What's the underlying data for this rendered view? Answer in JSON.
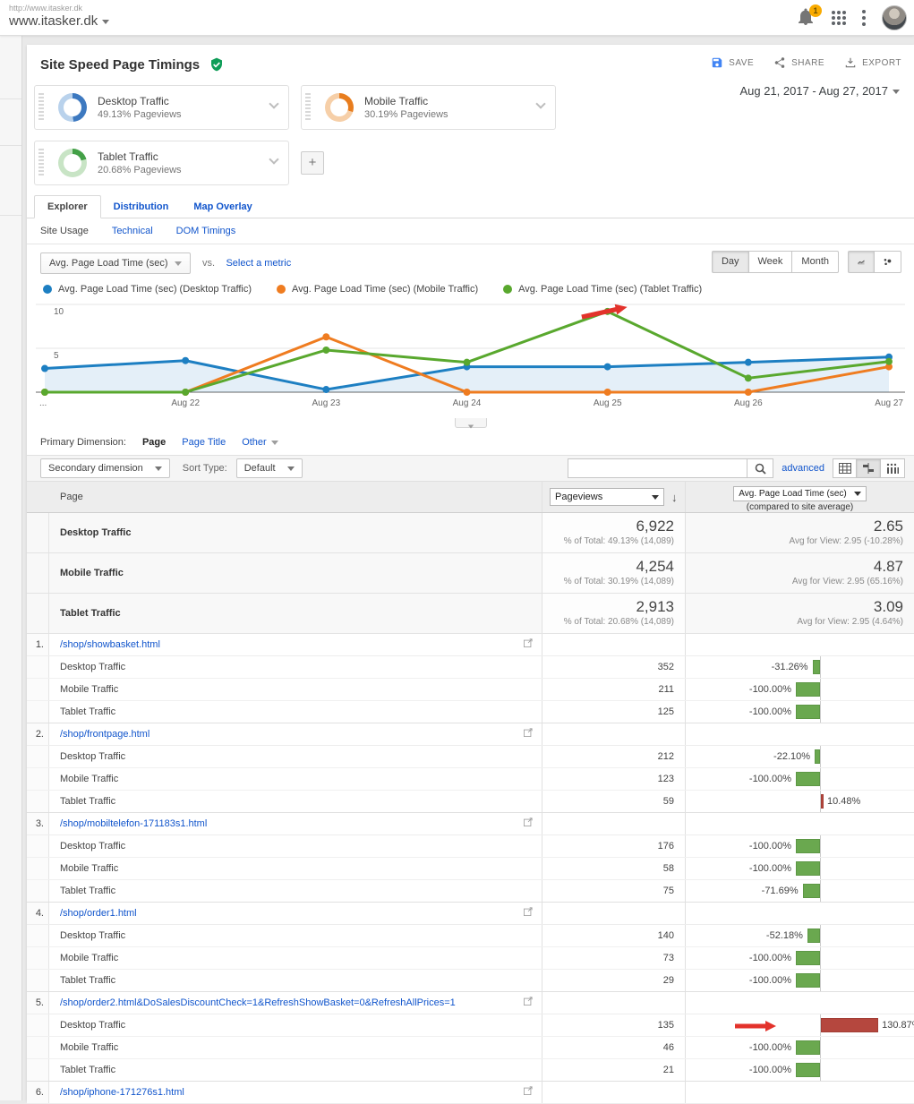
{
  "topbar": {
    "property_url": "http://www.itasker.dk",
    "property_name": "www.itasker.dk",
    "notification_count": "1"
  },
  "report": {
    "title": "Site Speed Page Timings",
    "save_label": "SAVE",
    "share_label": "SHARE",
    "export_label": "EXPORT",
    "date_range": "Aug 21, 2017 - Aug 27, 2017"
  },
  "segments": [
    {
      "name": "Desktop Traffic",
      "detail": "49.13% Pageviews",
      "pct": 49.13,
      "color": "#3d79c0",
      "track": "#b9d2ec"
    },
    {
      "name": "Mobile Traffic",
      "detail": "30.19% Pageviews",
      "pct": 30.19,
      "color": "#e87d1e",
      "track": "#f6cfa8"
    },
    {
      "name": "Tablet Traffic",
      "detail": "20.68% Pageviews",
      "pct": 20.68,
      "color": "#43a047",
      "track": "#c8e4c5"
    }
  ],
  "add_segment_label": "+",
  "tabs": [
    {
      "label": "Explorer",
      "active": true
    },
    {
      "label": "Distribution",
      "active": false
    },
    {
      "label": "Map Overlay",
      "active": false
    }
  ],
  "subtabs": [
    {
      "label": "Site Usage",
      "active": true
    },
    {
      "label": "Technical",
      "active": false
    },
    {
      "label": "DOM Timings",
      "active": false
    }
  ],
  "metric_bar": {
    "metric_dropdown": "Avg. Page Load Time (sec)",
    "vs_label": "vs.",
    "select_metric_link": "Select a metric",
    "granularity": [
      {
        "label": "Day",
        "active": true
      },
      {
        "label": "Week",
        "active": false
      },
      {
        "label": "Month",
        "active": false
      }
    ]
  },
  "chart_data": {
    "type": "line",
    "x_labels": [
      "...",
      "Aug 22",
      "Aug 23",
      "Aug 24",
      "Aug 25",
      "Aug 26",
      "Aug 27"
    ],
    "ylim": [
      0,
      10
    ],
    "yticks": [
      10,
      5
    ],
    "grid": true,
    "legend_position": "top",
    "series": [
      {
        "name": "Avg. Page Load Time (sec) (Desktop Traffic)",
        "color": "#1d7fc2",
        "area": true,
        "values": [
          2.7,
          3.6,
          0.3,
          2.9,
          2.9,
          3.4,
          4.0
        ]
      },
      {
        "name": "Avg. Page Load Time (sec) (Mobile Traffic)",
        "color": "#ef7c20",
        "area": false,
        "values": [
          0,
          0,
          6.3,
          0,
          0,
          0,
          2.9
        ]
      },
      {
        "name": "Avg. Page Load Time (sec) (Tablet Traffic)",
        "color": "#59a82e",
        "area": false,
        "values": [
          0,
          0,
          4.8,
          3.4,
          9.2,
          1.6,
          3.5
        ]
      }
    ],
    "annotation": {
      "type": "arrow",
      "color": "#e3322b",
      "series": 2,
      "point": 4,
      "note": "red arrow pointing at Tablet Traffic peak on Aug 25"
    }
  },
  "dimension_bar": {
    "label": "Primary Dimension:",
    "options": [
      {
        "label": "Page",
        "active": true
      },
      {
        "label": "Page Title",
        "active": false
      },
      {
        "label": "Other",
        "active": false,
        "caret": true
      }
    ]
  },
  "table_toolbar": {
    "secondary_dimension_label": "Secondary dimension",
    "sort_type_label": "Sort Type:",
    "sort_type_value": "Default",
    "search_value": "",
    "advanced_label": "advanced"
  },
  "table": {
    "header": {
      "page_col": "Page",
      "pageviews_col": "Pageviews",
      "metric_col": "Avg. Page Load Time (sec)",
      "metric_sub": "(compared to site average)"
    },
    "summary_rows": [
      {
        "name": "Desktop Traffic",
        "pageviews": "6,922",
        "pageviews_sub": "% of Total: 49.13% (14,089)",
        "metric": "2.65",
        "metric_sub": "Avg for View: 2.95 (-10.28%)"
      },
      {
        "name": "Mobile Traffic",
        "pageviews": "4,254",
        "pageviews_sub": "% of Total: 30.19% (14,089)",
        "metric": "4.87",
        "metric_sub": "Avg for View: 2.95 (65.16%)"
      },
      {
        "name": "Tablet Traffic",
        "pageviews": "2,913",
        "pageviews_sub": "% of Total: 20.68% (14,089)",
        "metric": "3.09",
        "metric_sub": "Avg for View: 2.95 (4.64%)"
      }
    ],
    "page_groups": [
      {
        "index": "1.",
        "url": "/shop/showbasket.html",
        "segments": [
          {
            "name": "Desktop Traffic",
            "pageviews": "352",
            "delta_pct": -31.26,
            "delta_label": "-31.26%"
          },
          {
            "name": "Mobile Traffic",
            "pageviews": "211",
            "delta_pct": -100,
            "delta_label": "-100.00%"
          },
          {
            "name": "Tablet Traffic",
            "pageviews": "125",
            "delta_pct": -100,
            "delta_label": "-100.00%"
          }
        ]
      },
      {
        "index": "2.",
        "url": "/shop/frontpage.html",
        "segments": [
          {
            "name": "Desktop Traffic",
            "pageviews": "212",
            "delta_pct": -22.1,
            "delta_label": "-22.10%"
          },
          {
            "name": "Mobile Traffic",
            "pageviews": "123",
            "delta_pct": -100,
            "delta_label": "-100.00%"
          },
          {
            "name": "Tablet Traffic",
            "pageviews": "59",
            "delta_pct": 10.48,
            "delta_label": "10.48%"
          }
        ]
      },
      {
        "index": "3.",
        "url": "/shop/mobiltelefon-171183s1.html",
        "segments": [
          {
            "name": "Desktop Traffic",
            "pageviews": "176",
            "delta_pct": -100,
            "delta_label": "-100.00%"
          },
          {
            "name": "Mobile Traffic",
            "pageviews": "58",
            "delta_pct": -100,
            "delta_label": "-100.00%"
          },
          {
            "name": "Tablet Traffic",
            "pageviews": "75",
            "delta_pct": -71.69,
            "delta_label": "-71.69%"
          }
        ]
      },
      {
        "index": "4.",
        "url": "/shop/order1.html",
        "segments": [
          {
            "name": "Desktop Traffic",
            "pageviews": "140",
            "delta_pct": -52.18,
            "delta_label": "-52.18%"
          },
          {
            "name": "Mobile Traffic",
            "pageviews": "73",
            "delta_pct": -100,
            "delta_label": "-100.00%"
          },
          {
            "name": "Tablet Traffic",
            "pageviews": "29",
            "delta_pct": -100,
            "delta_label": "-100.00%"
          }
        ]
      },
      {
        "index": "5.",
        "url": "/shop/order2.html&DoSalesDiscountCheck=1&RefreshShowBasket=0&RefreshAllPrices=1",
        "segments": [
          {
            "name": "Desktop Traffic",
            "pageviews": "135",
            "delta_pct": 130.87,
            "delta_label": "130.87%",
            "arrow": true
          },
          {
            "name": "Mobile Traffic",
            "pageviews": "46",
            "delta_pct": -100,
            "delta_label": "-100.00%"
          },
          {
            "name": "Tablet Traffic",
            "pageviews": "21",
            "delta_pct": -100,
            "delta_label": "-100.00%"
          }
        ]
      },
      {
        "index": "6.",
        "url": "/shop/iphone-171276s1.html",
        "segments": []
      }
    ]
  },
  "colors": {
    "positive_bar": "#b5473e",
    "negative_bar": "#6aa84f",
    "link_blue": "#1155cc",
    "annotation_red": "#e3322b"
  }
}
